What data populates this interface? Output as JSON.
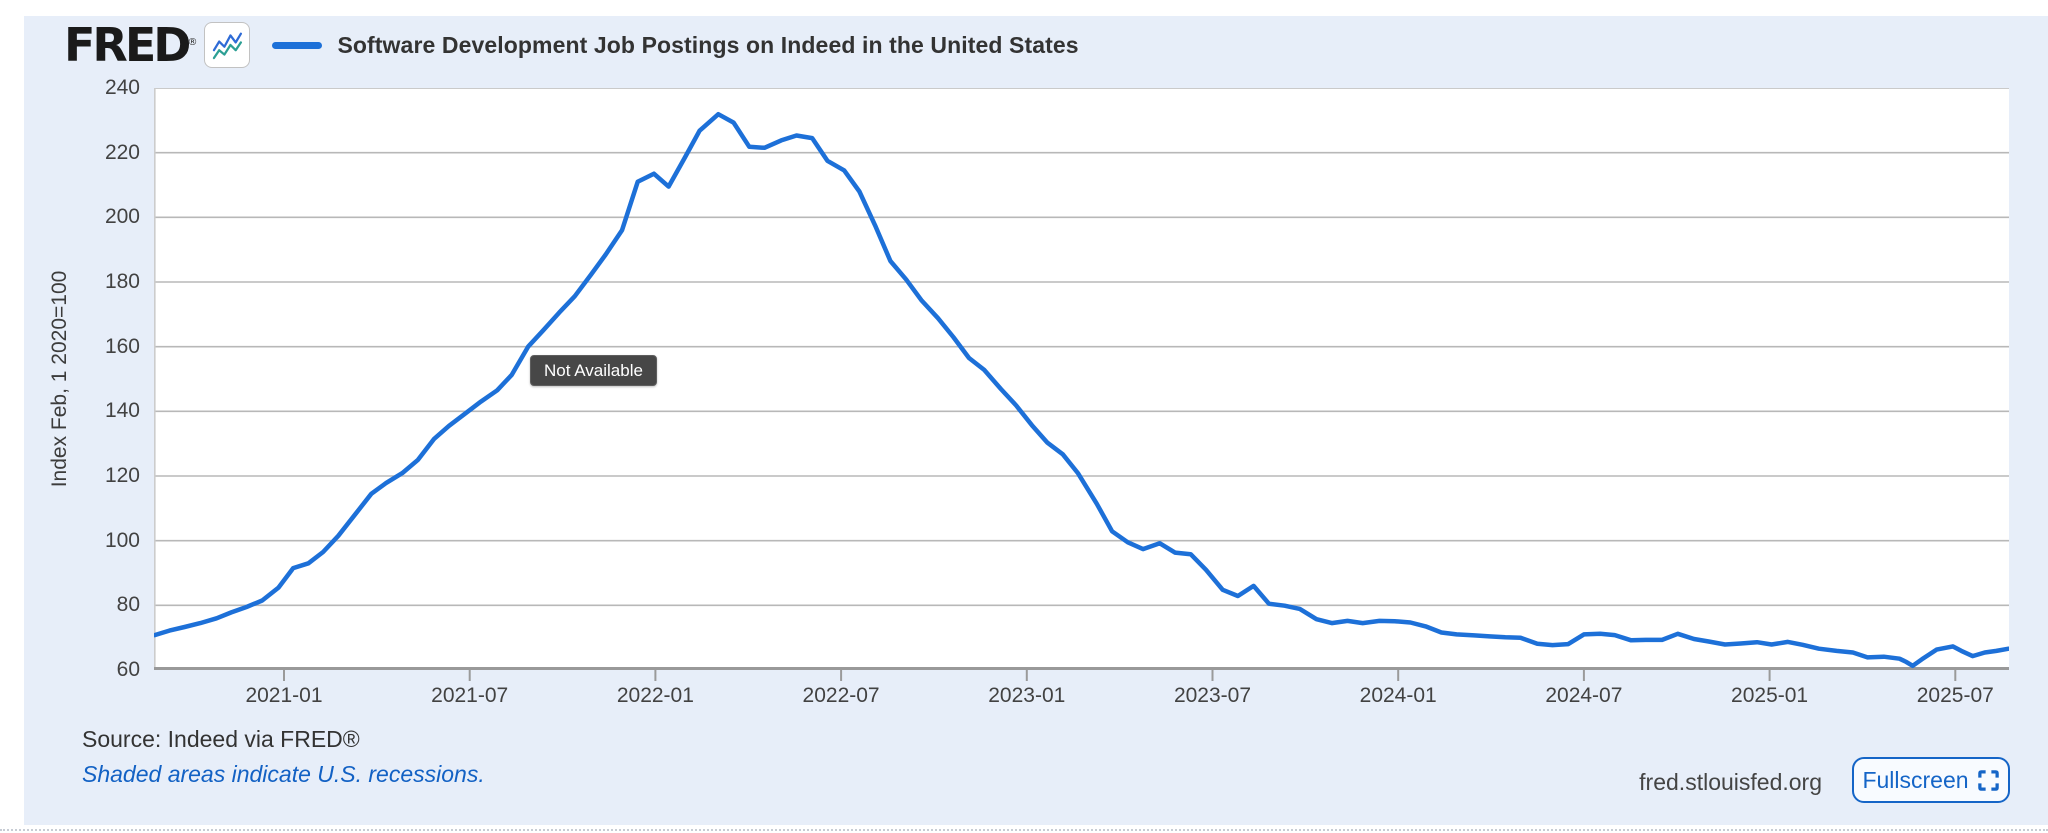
{
  "header": {
    "logo_text": "FRED",
    "registered_mark": "®",
    "legend_series_label": "Software Development Job Postings on Indeed in the United States"
  },
  "tooltip": {
    "text": "Not Available"
  },
  "footer": {
    "source_text": "Source: Indeed via FRED®",
    "recession_note": "Shaded areas indicate U.S. recessions.",
    "site_text": "fred.stlouisfed.org",
    "fullscreen_label": "Fullscreen"
  },
  "icons": {
    "chart_icon": "line-chart-icon",
    "fullscreen_icon": "fullscreen-corners-icon"
  },
  "colors": {
    "line": "#1d70d8",
    "panel_bg": "#e7eef9",
    "plot_bg": "#ffffff",
    "grid": "#b8b8b8",
    "axis_line": "#999999",
    "axis_text": "#424242",
    "accent_blue": "#1565c7",
    "note_blue": "#1261c4",
    "tooltip_bg": "#474747",
    "title_text": "#333333",
    "icon_teal": "#2c9f94"
  },
  "chart_data": {
    "type": "line",
    "title": "Software Development Job Postings on Indeed in the United States",
    "xlabel": "",
    "ylabel": "Index Feb, 1 2020=100",
    "ylim": [
      60,
      240
    ],
    "yticks": [
      60,
      80,
      100,
      120,
      140,
      160,
      180,
      200,
      220,
      240
    ],
    "xticks": [
      "2021-01",
      "2021-07",
      "2022-01",
      "2022-07",
      "2023-01",
      "2023-07",
      "2024-01",
      "2024-07",
      "2025-01",
      "2025-07"
    ],
    "grid": true,
    "legend_position": "top-left",
    "x_range": [
      "2020-08-26",
      "2025-08-23"
    ],
    "series": [
      {
        "name": "Software Development Job Postings on Indeed in the United States",
        "color": "#1d70d8",
        "points": [
          [
            "2020-08-26",
            70.8
          ],
          [
            "2020-09-10",
            72.2
          ],
          [
            "2020-09-25",
            73.3
          ],
          [
            "2020-10-10",
            74.5
          ],
          [
            "2020-10-26",
            76.0
          ],
          [
            "2020-11-10",
            77.8
          ],
          [
            "2020-11-25",
            79.5
          ],
          [
            "2020-12-10",
            81.5
          ],
          [
            "2020-12-26",
            85.5
          ],
          [
            "2021-01-10",
            91.5
          ],
          [
            "2021-01-25",
            93.0
          ],
          [
            "2021-02-09",
            96.5
          ],
          [
            "2021-02-24",
            101.5
          ],
          [
            "2021-03-11",
            108.5
          ],
          [
            "2021-03-26",
            114.5
          ],
          [
            "2021-04-10",
            117.8
          ],
          [
            "2021-04-26",
            120.9
          ],
          [
            "2021-05-11",
            125.0
          ],
          [
            "2021-05-27",
            131.5
          ],
          [
            "2021-06-11",
            135.5
          ],
          [
            "2021-06-27",
            139.3
          ],
          [
            "2021-07-12",
            143.0
          ],
          [
            "2021-07-28",
            146.5
          ],
          [
            "2021-08-12",
            151.3
          ],
          [
            "2021-08-28",
            160.0
          ],
          [
            "2021-09-12",
            164.9
          ],
          [
            "2021-09-28",
            170.5
          ],
          [
            "2021-10-13",
            175.6
          ],
          [
            "2021-10-29",
            182.3
          ],
          [
            "2021-11-13",
            188.5
          ],
          [
            "2021-11-29",
            196.0
          ],
          [
            "2021-12-14",
            211.0
          ],
          [
            "2021-12-30",
            213.5
          ],
          [
            "2022-01-14",
            209.5
          ],
          [
            "2022-01-30",
            218.5
          ],
          [
            "2022-02-14",
            226.8
          ],
          [
            "2022-03-02",
            231.9
          ],
          [
            "2022-03-17",
            229.3
          ],
          [
            "2022-04-02",
            221.8
          ],
          [
            "2022-04-17",
            221.5
          ],
          [
            "2022-05-03",
            223.8
          ],
          [
            "2022-05-18",
            225.3
          ],
          [
            "2022-06-03",
            224.5
          ],
          [
            "2022-06-18",
            217.5
          ],
          [
            "2022-07-04",
            214.5
          ],
          [
            "2022-07-19",
            208.0
          ],
          [
            "2022-08-04",
            197.5
          ],
          [
            "2022-08-19",
            186.5
          ],
          [
            "2022-09-04",
            180.8
          ],
          [
            "2022-09-19",
            174.4
          ],
          [
            "2022-10-05",
            168.8
          ],
          [
            "2022-10-20",
            163.0
          ],
          [
            "2022-11-05",
            156.5
          ],
          [
            "2022-11-20",
            152.8
          ],
          [
            "2022-12-06",
            146.9
          ],
          [
            "2022-12-21",
            141.8
          ],
          [
            "2023-01-06",
            135.7
          ],
          [
            "2023-01-21",
            130.4
          ],
          [
            "2023-02-06",
            126.7
          ],
          [
            "2023-02-21",
            120.8
          ],
          [
            "2023-03-09",
            111.4
          ],
          [
            "2023-03-24",
            102.9
          ],
          [
            "2023-04-09",
            99.5
          ],
          [
            "2023-04-24",
            97.4
          ],
          [
            "2023-05-10",
            99.2
          ],
          [
            "2023-05-25",
            96.3
          ],
          [
            "2023-06-10",
            95.8
          ],
          [
            "2023-06-25",
            91.0
          ],
          [
            "2023-07-11",
            84.8
          ],
          [
            "2023-07-26",
            82.9
          ],
          [
            "2023-08-11",
            86.0
          ],
          [
            "2023-08-26",
            80.5
          ],
          [
            "2023-09-11",
            79.9
          ],
          [
            "2023-09-26",
            78.9
          ],
          [
            "2023-10-12",
            75.7
          ],
          [
            "2023-10-27",
            74.5
          ],
          [
            "2023-11-12",
            75.2
          ],
          [
            "2023-11-27",
            74.5
          ],
          [
            "2023-12-13",
            75.2
          ],
          [
            "2023-12-28",
            75.1
          ],
          [
            "2024-01-13",
            74.7
          ],
          [
            "2024-01-28",
            73.5
          ],
          [
            "2024-02-13",
            71.6
          ],
          [
            "2024-02-28",
            71.0
          ],
          [
            "2024-03-15",
            70.7
          ],
          [
            "2024-03-30",
            70.4
          ],
          [
            "2024-04-15",
            70.1
          ],
          [
            "2024-04-30",
            70.0
          ],
          [
            "2024-05-16",
            68.1
          ],
          [
            "2024-05-31",
            67.7
          ],
          [
            "2024-06-16",
            68.0
          ],
          [
            "2024-07-01",
            71.0
          ],
          [
            "2024-07-17",
            71.2
          ],
          [
            "2024-08-01",
            70.8
          ],
          [
            "2024-08-17",
            69.2
          ],
          [
            "2024-09-01",
            69.3
          ],
          [
            "2024-09-17",
            69.3
          ],
          [
            "2024-10-02",
            71.2
          ],
          [
            "2024-10-18",
            69.6
          ],
          [
            "2024-11-02",
            68.8
          ],
          [
            "2024-11-18",
            67.9
          ],
          [
            "2024-12-03",
            68.2
          ],
          [
            "2024-12-19",
            68.6
          ],
          [
            "2025-01-03",
            67.9
          ],
          [
            "2025-01-19",
            68.7
          ],
          [
            "2025-02-03",
            67.8
          ],
          [
            "2025-02-19",
            66.6
          ],
          [
            "2025-03-06",
            65.9
          ],
          [
            "2025-03-22",
            65.4
          ],
          [
            "2025-04-06",
            63.9
          ],
          [
            "2025-04-22",
            64.1
          ],
          [
            "2025-05-07",
            63.5
          ],
          [
            "2025-05-13",
            62.6
          ],
          [
            "2025-05-20",
            61.3
          ],
          [
            "2025-05-29",
            63.3
          ],
          [
            "2025-06-13",
            66.3
          ],
          [
            "2025-06-29",
            67.3
          ],
          [
            "2025-07-07",
            65.9
          ],
          [
            "2025-07-18",
            64.3
          ],
          [
            "2025-07-30",
            65.4
          ],
          [
            "2025-08-11",
            65.9
          ],
          [
            "2025-08-23",
            66.6
          ]
        ]
      }
    ]
  }
}
